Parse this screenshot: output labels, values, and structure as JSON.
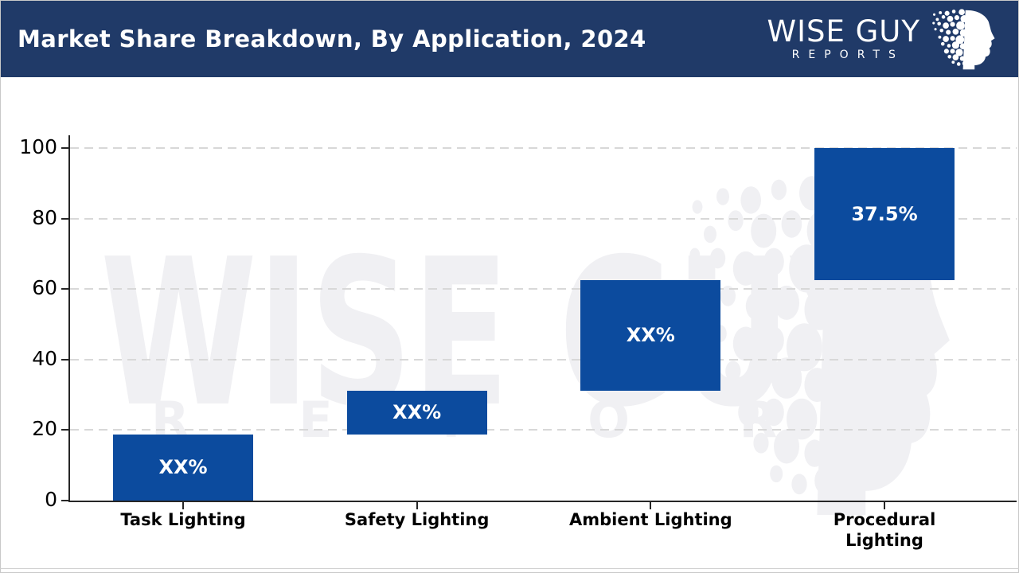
{
  "header": {
    "title": "Market Share Breakdown, By Application, 2024",
    "logo": {
      "wordmark": "WISE GUY",
      "subtext": "REPORTS"
    }
  },
  "watermark": {
    "wordmark": "WISE GUY",
    "subtext": "R E P O R T S"
  },
  "colors": {
    "header_bg": "#203a68",
    "bar": "#0c4b9e",
    "bar_label": "#ffffff",
    "grid": "#d8d8d8",
    "axis": "#262626",
    "watermark": "#f0f0f3",
    "card_border": "#c9c9c9"
  },
  "chart_data": {
    "type": "bar",
    "subtype": "floating-waterfall",
    "title": "Market Share Breakdown, By Application, 2024",
    "categories": [
      "Task Lighting",
      "Safety Lighting",
      "Ambient Lighting",
      "Procedural Lighting"
    ],
    "segments": [
      {
        "category": "Task Lighting",
        "start": 0,
        "end": 18.75,
        "value": 18.75,
        "value_label": "XX%"
      },
      {
        "category": "Safety Lighting",
        "start": 18.75,
        "end": 31.25,
        "value": 12.5,
        "value_label": "XX%"
      },
      {
        "category": "Ambient Lighting",
        "start": 31.25,
        "end": 62.5,
        "value": 31.25,
        "value_label": "XX%"
      },
      {
        "category": "Procedural Lighting",
        "start": 62.5,
        "end": 100,
        "value": 37.5,
        "value_label": "37.5%",
        "tick_label": "Procedural\nLighting"
      }
    ],
    "y_ticks": [
      0,
      20,
      40,
      60,
      80,
      100
    ],
    "ylim": [
      0,
      100
    ],
    "xlabel": "",
    "ylabel": "",
    "grid": "horizontal-dashed",
    "legend": "none"
  }
}
